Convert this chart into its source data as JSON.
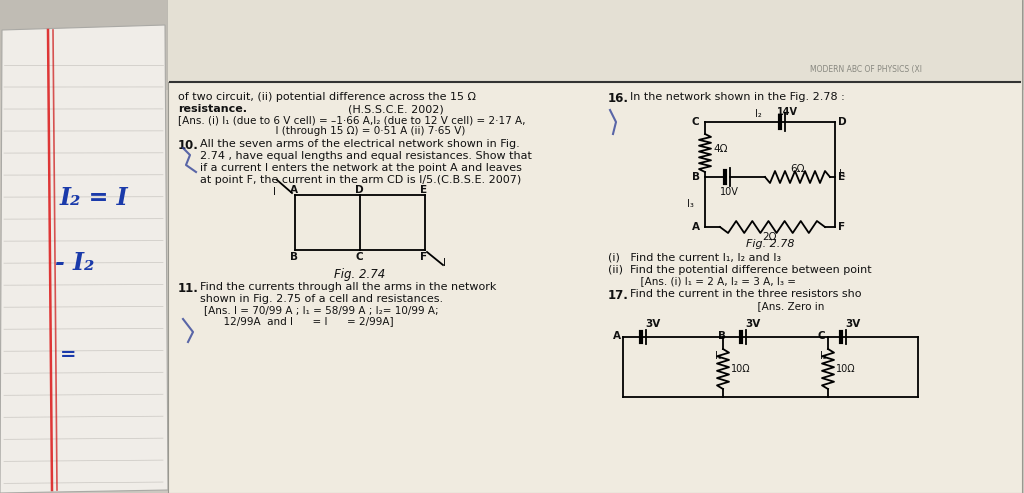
{
  "bg_top": "#d0ccc4",
  "bg_notebook": "#e8e6e0",
  "bg_textbook": "#ede8de",
  "bg_textbook_upper": "#e0dcd4",
  "notebook_line_color": "#b0aaa0",
  "red_line1": "#bb2020",
  "red_line2": "#cc3030",
  "handwritten_color": "#1a3aaa",
  "title_line": "of two circuit, (ii) potential difference across the 15 Ω",
  "line1a": "resistance.",
  "line1b": "(H.S.S.C.E. 2002)",
  "line2": "[Ans. (i) I₁ (due to 6 V cell) = –1·66 A,I₂ (due to 12 V cell) = 2·17 A,",
  "line3": "                              I (through 15 Ω) = 0·51 A (ii) 7·65 V)",
  "q10_num": "10.",
  "q10_t1": "All the seven arms of the electrical network shown in Fig.",
  "q10_t2": "2.74 , have equal lengths and equal resistances. Show that",
  "q10_t3": "if a current I enters the network at the point A and leaves",
  "q10_t4": "at point F, the current in the arm CD is I/5.(C.B.S.E. 2007)",
  "fig274_label": "Fig. 2.74",
  "q11_num": "11.",
  "q11_t1": "Find the currents through all the arms in the network",
  "q11_t2": "shown in Fig. 2.75 of a cell and resistances.",
  "q11_ans1": "        [Ans. I = 70/99 A ; I₁ = 58/99 A ; I₂= 10/99 A;",
  "q11_ans2": "              12/99A  and I      = I      = 2/99A]",
  "q16_num": "16.",
  "q16_title": "In the network shown in the Fig. 2.78 :",
  "fig278_label": "Fig. 2.78",
  "q16_i": "(i)   Find the current I₁, I₂ and I₃",
  "q16_ii": "(ii)  Find the potential difference between point",
  "q16_ans": "          [Ans. (i) I₁ = 2 A, I₂ = 3 A, I₃ =",
  "q17_num": "17.",
  "q17_t1": "Find the current in the three resistors sho",
  "q17_ans": "                                              [Ans. Zero in ",
  "header_text": "MODERN ABC OF PHYSICS (XI",
  "left_hw1": "I₂ = I",
  "left_hw2": "- I₂",
  "left_hw3": "="
}
